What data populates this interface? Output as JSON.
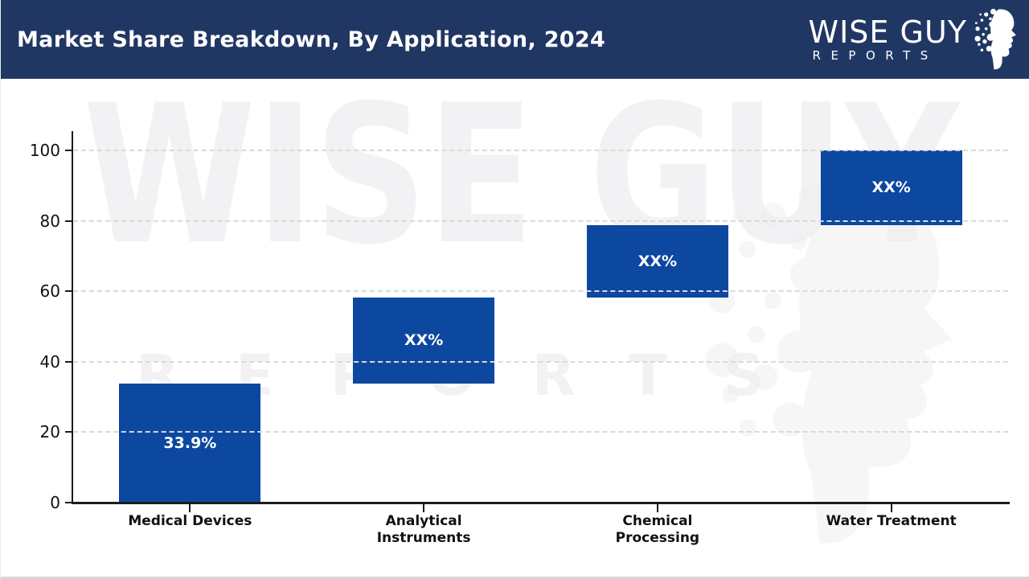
{
  "header": {
    "title": "Market Share Breakdown, By Application, 2024",
    "brand": {
      "line1": "WISE GUY",
      "line2": "REPORTS"
    }
  },
  "watermark": {
    "line1": "WISE GUY",
    "line2": "REPORTS"
  },
  "chart_data": {
    "type": "bar",
    "variant": "waterfall",
    "title": "Market Share Breakdown, By Application, 2024",
    "categories": [
      "Medical Devices",
      "Analytical\nInstruments",
      "Chemical\nProcessing",
      "Water Treatment"
    ],
    "segments": [
      {
        "category": "Medical Devices",
        "start": 0,
        "end": 33.9,
        "value_label": "33.9%"
      },
      {
        "category": "Analytical Instruments",
        "start": 33.9,
        "end": 58.2,
        "value_label": "XX%"
      },
      {
        "category": "Chemical Processing",
        "start": 58.2,
        "end": 78.8,
        "value_label": "XX%"
      },
      {
        "category": "Water Treatment",
        "start": 78.8,
        "end": 100,
        "value_label": "XX%"
      }
    ],
    "xlabel": "",
    "ylabel": "",
    "ylim": [
      0,
      105
    ],
    "yticks": [
      0,
      20,
      40,
      60,
      80,
      100
    ],
    "grid": {
      "horizontal": true,
      "style": "dashed"
    },
    "legend": "none"
  },
  "colors": {
    "header_bg": "#213763",
    "bar": "#0c47a0",
    "grid": "#d9d9d9",
    "axis": "#1c1c1c",
    "watermark": "#f2f2f4",
    "title_text": "#ffffff",
    "value_label": "#ffffff",
    "tick_label": "#111111"
  }
}
